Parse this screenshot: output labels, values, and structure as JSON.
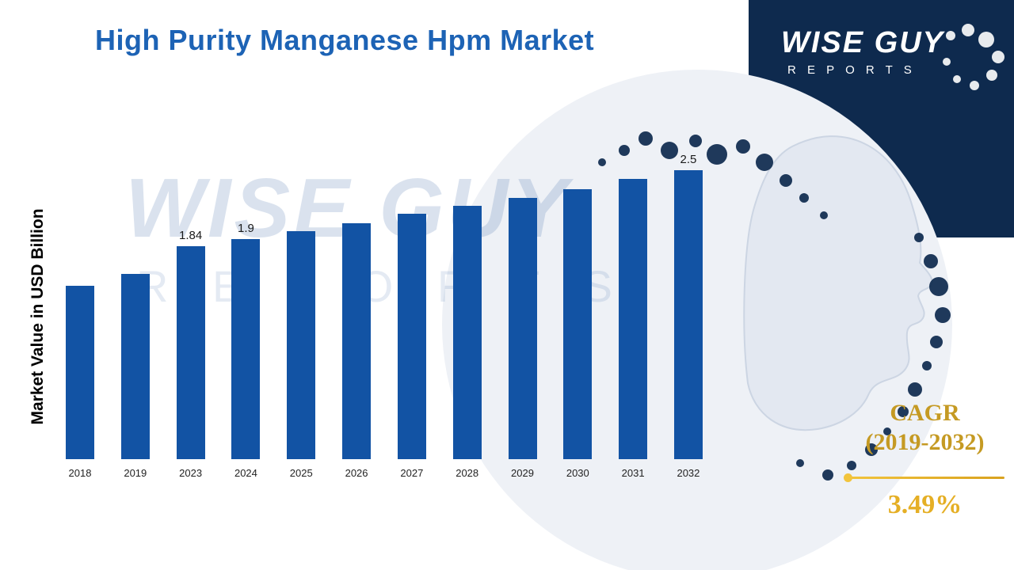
{
  "title": "High Purity Manganese Hpm Market",
  "logo": {
    "name": "WISE GUY",
    "subtitle": "R E P O R T S"
  },
  "watermark": {
    "line1": "WISE GUY",
    "line2": "R E P O R T S"
  },
  "chart_data": {
    "type": "bar",
    "title": "High Purity Manganese Hpm Market",
    "ylabel": "Market Value in USD Billion",
    "categories": [
      "2018",
      "2019",
      "2023",
      "2024",
      "2025",
      "2026",
      "2027",
      "2028",
      "2029",
      "2030",
      "2031",
      "2032"
    ],
    "values": [
      1.5,
      1.6,
      1.84,
      1.9,
      1.97,
      2.04,
      2.12,
      2.19,
      2.26,
      2.33,
      2.42,
      2.5
    ],
    "bar_labels": [
      "",
      "",
      "1.84",
      "1.9",
      "",
      "",
      "",
      "",
      "",
      "",
      "",
      "2.5"
    ],
    "ylim": [
      0,
      2.6
    ],
    "grid": false,
    "legend": null,
    "bar_color": "#1253a4"
  },
  "cagr": {
    "label": "CAGR",
    "range": "(2019-2032)",
    "value": "3.49%"
  },
  "colors": {
    "title_blue": "#1d63b5",
    "navy": "#0e2a4e",
    "bar_blue": "#1253a4",
    "gold": "#e0a92a",
    "watermark_blue": "#2a5ca0",
    "circle_gray": "#eef1f6"
  }
}
